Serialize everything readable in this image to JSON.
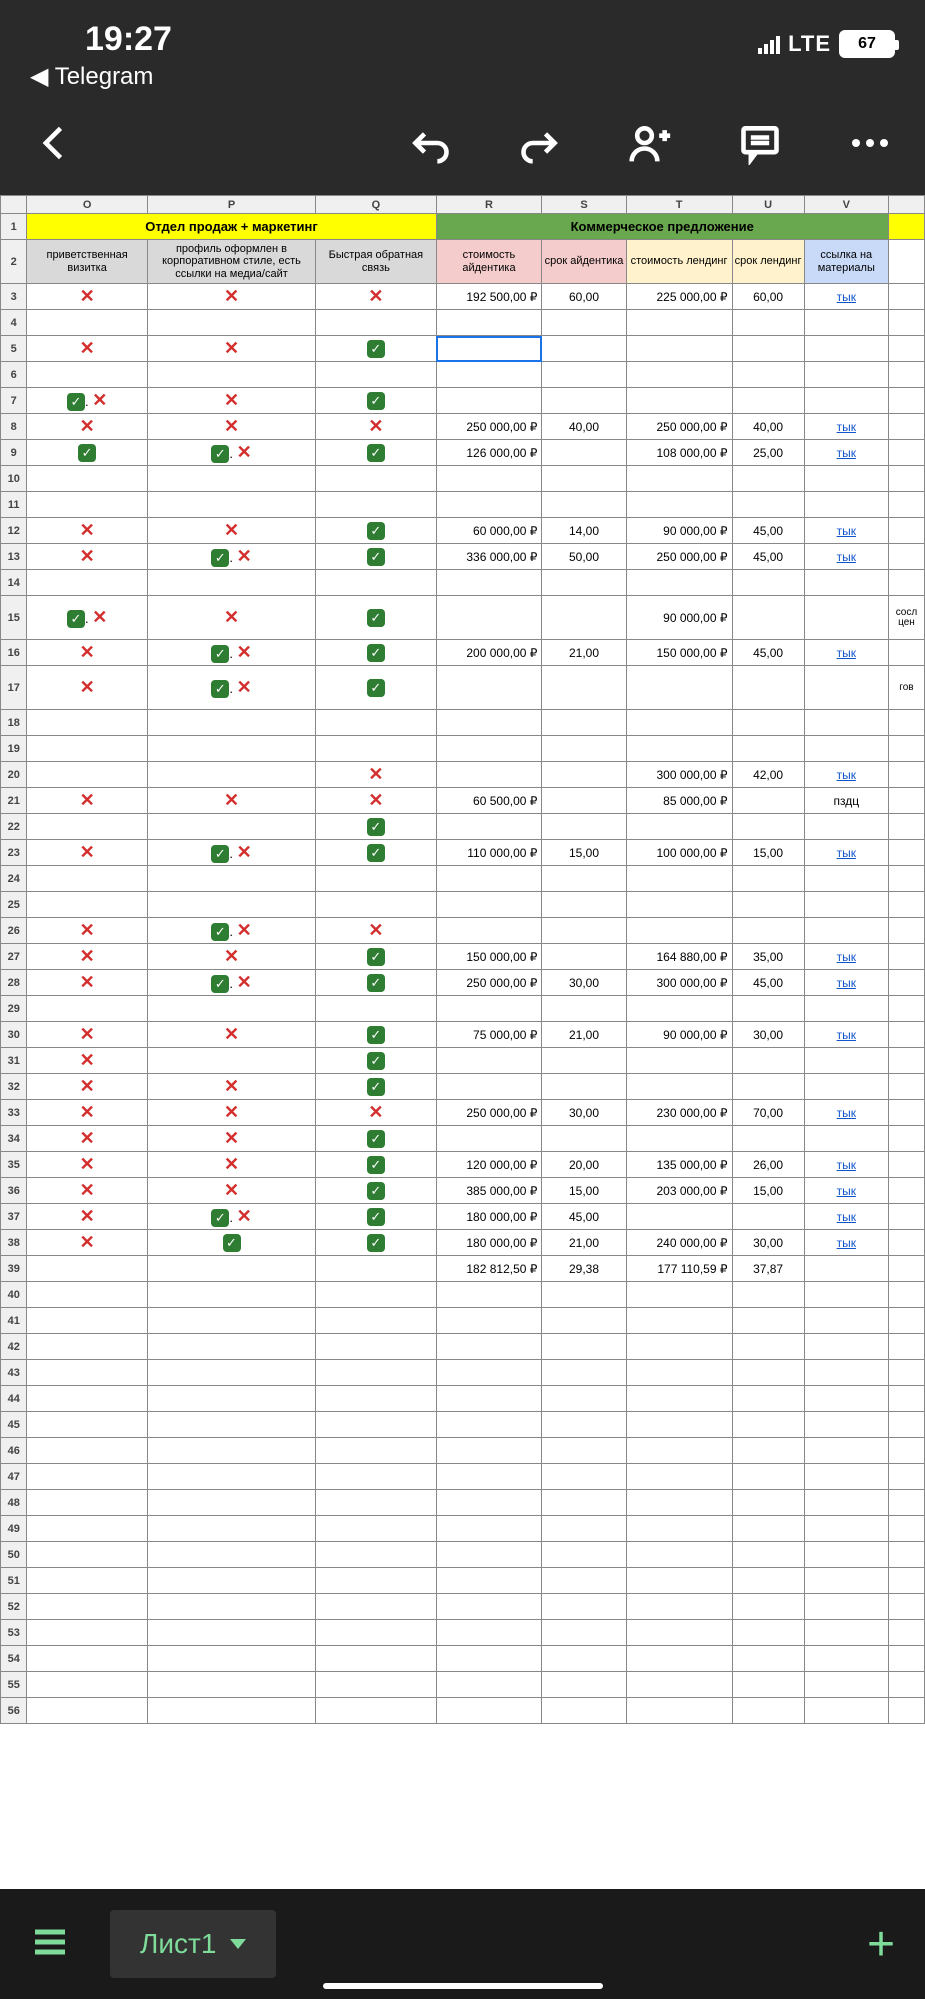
{
  "status": {
    "time": "19:27",
    "back_app": "◀ Telegram",
    "network": "LTE",
    "battery": "67"
  },
  "toolbar": {
    "icons": [
      "back",
      "undo",
      "redo",
      "share",
      "comment",
      "more"
    ]
  },
  "sheet": {
    "columns": [
      "",
      "O",
      "P",
      "Q",
      "R",
      "S",
      "T",
      "U",
      "V",
      ""
    ],
    "header_row1": {
      "yellowSpan": "Отдел продаж + маркетинг",
      "greenSpan": "Коммерческое предложение"
    },
    "header_row2": {
      "O": "приветственная визитка",
      "P": "профиль оформлен в корпоративном стиле, есть ссылки на медиа/сайт",
      "Q": "Быстрая обратная связь",
      "R": "стоимость айдентика",
      "S": "срок айдентика",
      "T": "стоимость лендинг",
      "U": "срок лендинг",
      "V": "ссылка на материалы"
    },
    "link_text": "тык",
    "rows": [
      {
        "n": 3,
        "O": "x",
        "P": "x",
        "Q": "x",
        "R": "192 500,00 ₽",
        "S": "60,00",
        "T": "225 000,00 ₽",
        "U": "60,00",
        "V": "link"
      },
      {
        "n": 4
      },
      {
        "n": 5,
        "O": "x",
        "P": "x",
        "Q": "v",
        "selR": true
      },
      {
        "n": 6
      },
      {
        "n": 7,
        "O": "vx",
        "P": "x",
        "Q": "v"
      },
      {
        "n": 8,
        "O": "x",
        "P": "x",
        "Q": "x",
        "R": "250 000,00 ₽",
        "S": "40,00",
        "T": "250 000,00 ₽",
        "U": "40,00",
        "V": "link"
      },
      {
        "n": 9,
        "O": "v",
        "P": "vx",
        "Q": "v",
        "R": "126 000,00 ₽",
        "T": "108 000,00 ₽",
        "U": "25,00",
        "V": "link"
      },
      {
        "n": 10
      },
      {
        "n": 11
      },
      {
        "n": 12,
        "O": "x",
        "P": "x",
        "Q": "v",
        "R": "60 000,00 ₽",
        "S": "14,00",
        "T": "90 000,00 ₽",
        "U": "45,00",
        "V": "link"
      },
      {
        "n": 13,
        "O": "x",
        "P": "vx",
        "Q": "v",
        "R": "336 000,00 ₽",
        "S": "50,00",
        "T": "250 000,00 ₽",
        "U": "45,00",
        "V": "link"
      },
      {
        "n": 14
      },
      {
        "n": 15,
        "O": "vx",
        "P": "x",
        "Q": "v",
        "T": "90 000,00 ₽",
        "W": "сосл\nцен",
        "tall": true
      },
      {
        "n": 16,
        "O": "x",
        "P": "vx",
        "Q": "v",
        "R": "200 000,00 ₽",
        "S": "21,00",
        "T": "150 000,00 ₽",
        "U": "45,00",
        "V": "link"
      },
      {
        "n": 17,
        "O": "x",
        "P": "vx",
        "Q": "v",
        "W": "гов",
        "tall": true
      },
      {
        "n": 18
      },
      {
        "n": 19
      },
      {
        "n": 20,
        "Q": "x",
        "T": "300 000,00 ₽",
        "U": "42,00",
        "V": "link"
      },
      {
        "n": 21,
        "O": "x",
        "P": "x",
        "Q": "x",
        "R": "60 500,00 ₽",
        "T": "85 000,00 ₽",
        "V": "пздц"
      },
      {
        "n": 22,
        "Q": "v"
      },
      {
        "n": 23,
        "O": "x",
        "P": "vx",
        "Q": "v",
        "R": "110 000,00 ₽",
        "S": "15,00",
        "T": "100 000,00 ₽",
        "U": "15,00",
        "V": "link"
      },
      {
        "n": 24
      },
      {
        "n": 25
      },
      {
        "n": 26,
        "O": "x",
        "P": "vx",
        "Q": "x"
      },
      {
        "n": 27,
        "O": "x",
        "P": "x",
        "Q": "v",
        "R": "150 000,00 ₽",
        "T": "164 880,00 ₽",
        "U": "35,00",
        "V": "link"
      },
      {
        "n": 28,
        "O": "x",
        "P": "vx",
        "Q": "v",
        "R": "250 000,00 ₽",
        "S": "30,00",
        "T": "300 000,00 ₽",
        "U": "45,00",
        "V": "link"
      },
      {
        "n": 29
      },
      {
        "n": 30,
        "O": "x",
        "P": "x",
        "Q": "v",
        "R": "75 000,00 ₽",
        "S": "21,00",
        "T": "90 000,00 ₽",
        "U": "30,00",
        "V": "link"
      },
      {
        "n": 31,
        "O": "x",
        "Q": "v"
      },
      {
        "n": 32,
        "O": "x",
        "P": "x",
        "Q": "v"
      },
      {
        "n": 33,
        "O": "x",
        "P": "x",
        "Q": "x",
        "R": "250 000,00 ₽",
        "S": "30,00",
        "T": "230 000,00 ₽",
        "U": "70,00",
        "V": "link"
      },
      {
        "n": 34,
        "O": "x",
        "P": "x",
        "Q": "v"
      },
      {
        "n": 35,
        "O": "x",
        "P": "x",
        "Q": "v",
        "R": "120 000,00 ₽",
        "S": "20,00",
        "T": "135 000,00 ₽",
        "U": "26,00",
        "V": "link"
      },
      {
        "n": 36,
        "O": "x",
        "P": "x",
        "Q": "v",
        "R": "385 000,00 ₽",
        "S": "15,00",
        "T": "203 000,00 ₽",
        "U": "15,00",
        "V": "link"
      },
      {
        "n": 37,
        "O": "x",
        "P": "vx",
        "Q": "v",
        "R": "180 000,00 ₽",
        "S": "45,00",
        "V": "link"
      },
      {
        "n": 38,
        "O": "x",
        "P": "v",
        "Q": "v",
        "R": "180 000,00 ₽",
        "S": "21,00",
        "T": "240 000,00 ₽",
        "U": "30,00",
        "V": "link"
      },
      {
        "n": 39,
        "R": "182 812,50 ₽",
        "S": "29,38",
        "T": "177 110,59 ₽",
        "U": "37,87"
      },
      {
        "n": 40
      },
      {
        "n": 41
      },
      {
        "n": 42
      },
      {
        "n": 43
      },
      {
        "n": 44
      },
      {
        "n": 45
      },
      {
        "n": 46
      },
      {
        "n": 47
      },
      {
        "n": 48
      },
      {
        "n": 49
      },
      {
        "n": 50
      },
      {
        "n": 51
      },
      {
        "n": 52
      },
      {
        "n": 53
      },
      {
        "n": 54
      },
      {
        "n": 55
      },
      {
        "n": 56
      }
    ]
  },
  "bottom": {
    "sheet_name": "Лист1"
  }
}
